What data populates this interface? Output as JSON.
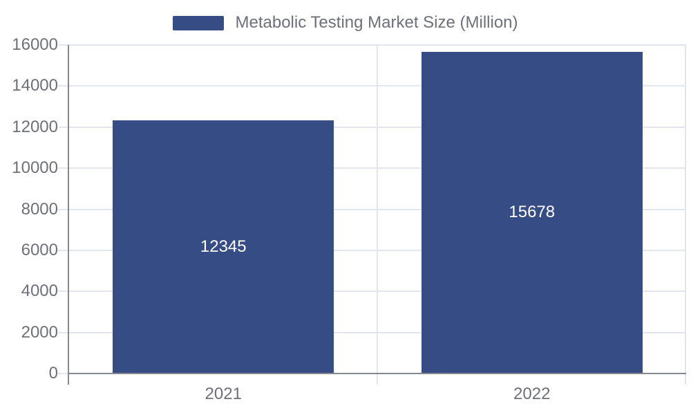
{
  "chart_data": {
    "type": "bar",
    "title": "Metabolic Testing Market Size (Million)",
    "categories": [
      "2021",
      "2022"
    ],
    "series": [
      {
        "name": "Metabolic Testing Market Size (Million)",
        "values": [
          12345,
          15678
        ]
      }
    ],
    "ylim": [
      0,
      16000
    ],
    "y_ticks": [
      0,
      2000,
      4000,
      6000,
      8000,
      10000,
      12000,
      14000,
      16000
    ],
    "grid": true,
    "legend_position": "top-center",
    "colors": {
      "bar": "#364c85",
      "bar_label": "#ffffff",
      "axis_text": "#6e7079",
      "axis_line": "#85888f",
      "gridline": "#e2e5ec",
      "background": "#ffffff"
    }
  }
}
